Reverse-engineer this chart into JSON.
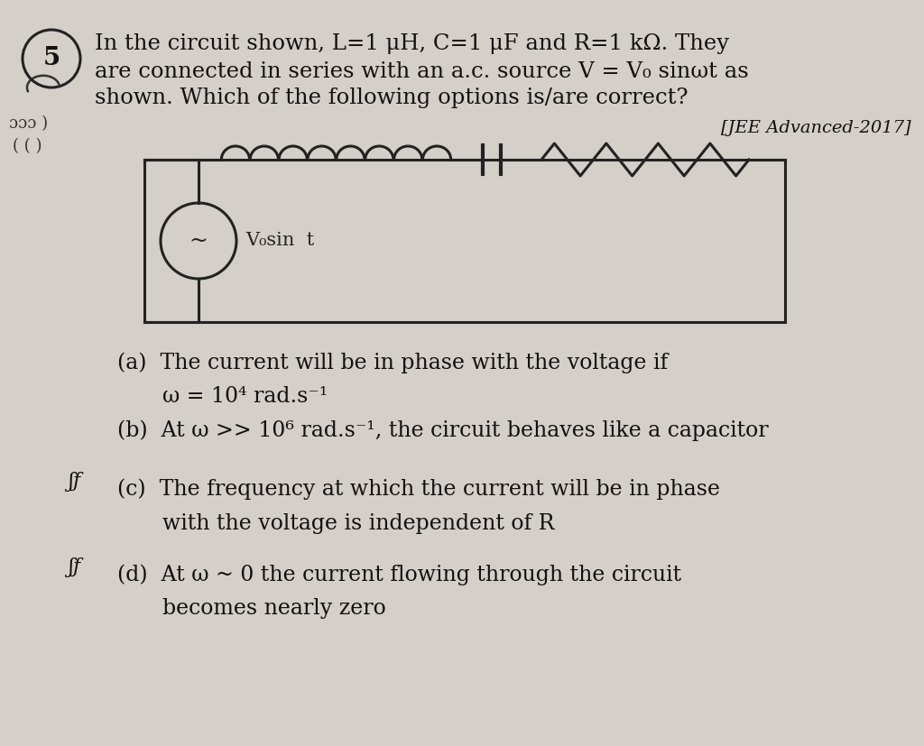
{
  "bg_color": "#d4cfc8",
  "title_number": "5",
  "question_text_line1": "In the circuit shown, L=1 μH, C=1 μF and R=1 kΩ. They",
  "question_text_line2": "are connected in series with an a.c. source V = V₀ sinωt as",
  "question_text_line3": "shown. Which of the following options is/are correct?",
  "citation": "[JEE Advanced-2017]",
  "source_label": "V₀sin  t",
  "circuit_bg": "#e8e5de"
}
